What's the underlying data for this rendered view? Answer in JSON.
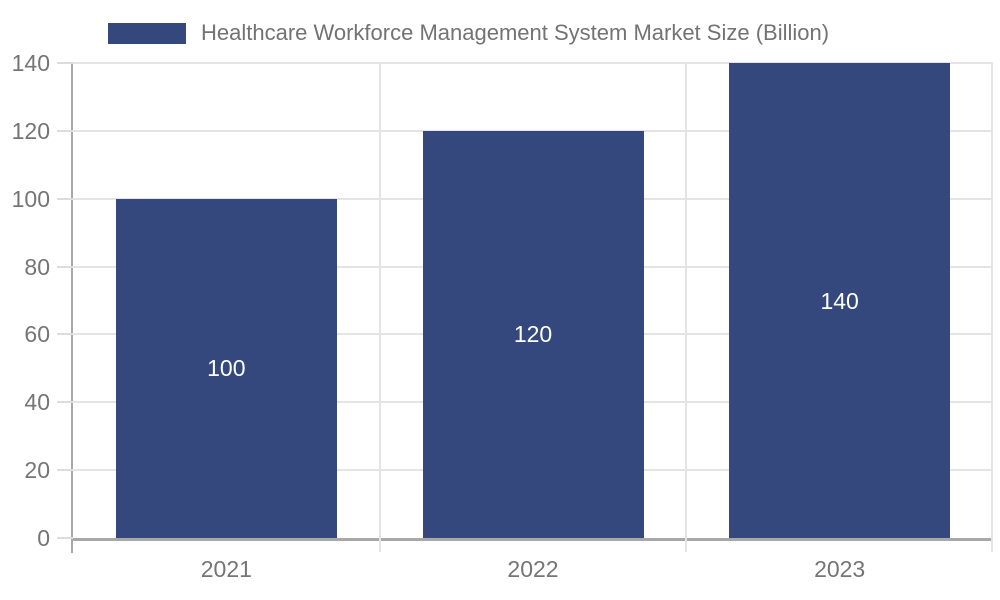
{
  "chart_data": {
    "type": "bar",
    "title": "Healthcare Workforce Management System Market Size (Billion)",
    "categories": [
      "2021",
      "2022",
      "2023"
    ],
    "values": [
      100,
      120,
      140
    ],
    "bar_value_labels": [
      "100",
      "120",
      "140"
    ],
    "xlabel": "",
    "ylabel": "",
    "ylim": [
      0,
      140
    ],
    "yticks": [
      0,
      20,
      40,
      60,
      80,
      100,
      120,
      140
    ],
    "grid": true,
    "legend": {
      "position": "top-left",
      "label": "Healthcare Workforce Management System Market Size (Billion)"
    },
    "colors": {
      "bar": "#34487E",
      "grid": "#e4e4e4",
      "axis": "#a8a8a8",
      "tick": "#dcdcdc",
      "tick_label": "#757575",
      "legend_text": "#737373",
      "bar_label": "#ffffff",
      "background": "#ffffff"
    }
  }
}
